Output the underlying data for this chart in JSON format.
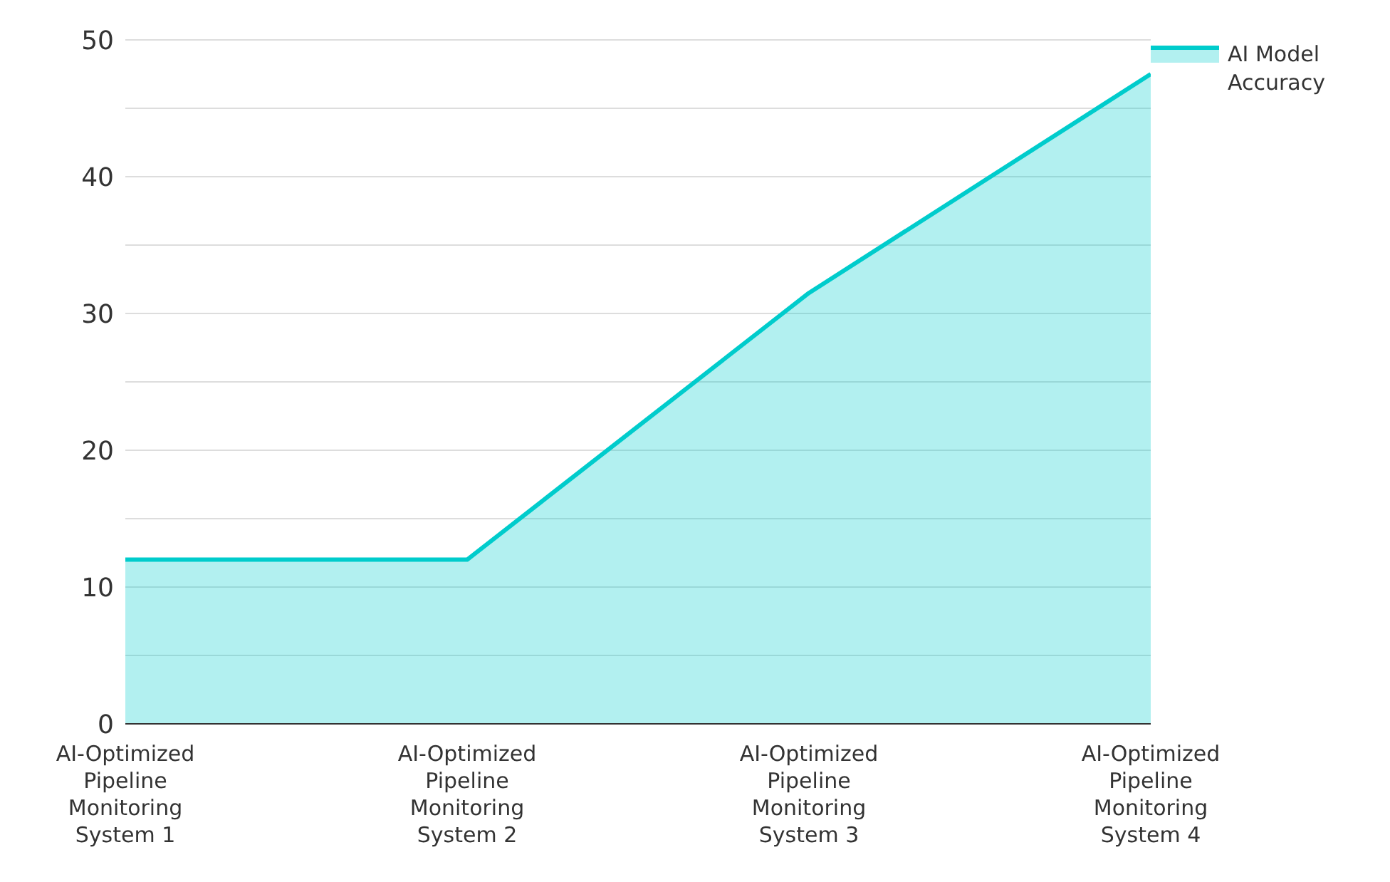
{
  "chart_data": {
    "type": "area",
    "categories": [
      "AI-Optimized Pipeline Monitoring System 1",
      "AI-Optimized Pipeline Monitoring System 2",
      "AI-Optimized Pipeline Monitoring System 3",
      "AI-Optimized Pipeline Monitoring System 4"
    ],
    "series": [
      {
        "name": "AI Model Accuracy",
        "color": "#00cccc",
        "values": [
          12,
          12,
          31.5,
          47.5
        ]
      }
    ],
    "ylim": [
      0,
      50
    ],
    "yticks": [
      0,
      {
        "value": 5,
        "label": null
      },
      10,
      {
        "value": 15,
        "label": null
      },
      20,
      {
        "value": 25,
        "label": null
      },
      30,
      {
        "value": 35,
        "label": null
      },
      40,
      {
        "value": 45,
        "label": null
      },
      50
    ],
    "grid": "y",
    "legend": "top right"
  }
}
